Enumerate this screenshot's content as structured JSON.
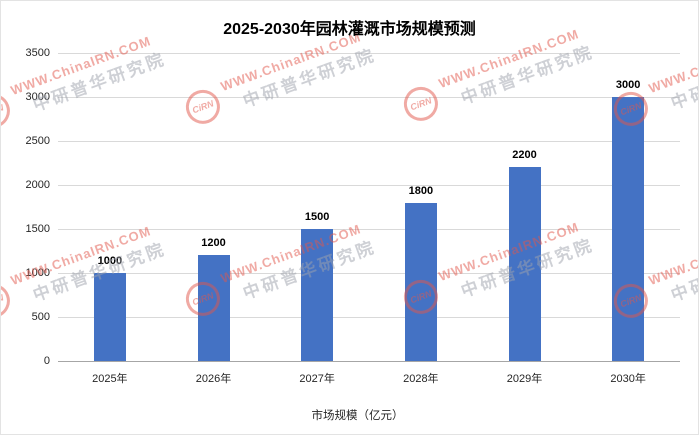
{
  "chart_data": {
    "type": "bar",
    "title": "2025-2030年园林灌溉市场规模预测",
    "categories": [
      "2025年",
      "2026年",
      "2027年",
      "2028年",
      "2029年",
      "2030年"
    ],
    "values": [
      1000,
      1200,
      1500,
      1800,
      2200,
      3000
    ],
    "series_name": "市场规模（亿元）",
    "xlabel": "",
    "ylabel": "",
    "ylim": [
      0,
      3500
    ],
    "yticks": [
      0,
      500,
      1000,
      1500,
      2000,
      2500,
      3000,
      3500
    ],
    "bar_color": "#4472C4",
    "grid": true,
    "legend_position": "bottom",
    "data_labels": true
  },
  "watermark": {
    "url": "WWW.ChinaIRN.COM",
    "name": "中研普华研究院",
    "logo": "CiRN"
  }
}
